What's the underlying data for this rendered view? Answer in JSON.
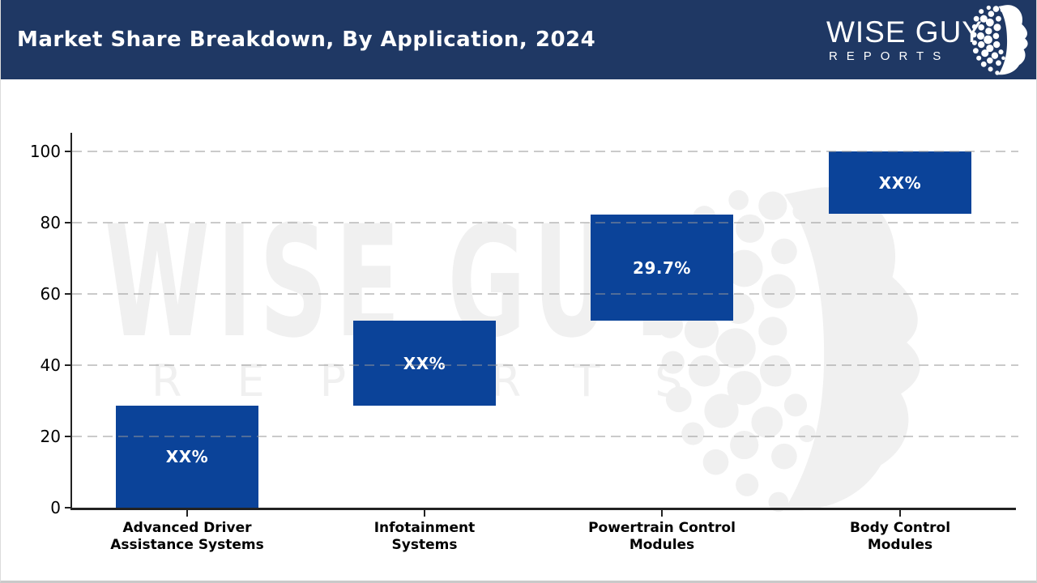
{
  "header": {
    "title": "Market Share Breakdown, By Application, 2024",
    "logo": {
      "brand": "WISE GUY",
      "sub": "REPORTS"
    }
  },
  "watermark": {
    "brand": "WISE GUY",
    "sub": "REPORTS"
  },
  "chart_data": {
    "type": "bar",
    "subtype": "waterfall",
    "title": "Market Share Breakdown, By Application, 2024",
    "categories": [
      "Advanced Driver\nAssistance Systems",
      "Infotainment\nSystems",
      "Powertrain Control\nModules",
      "Body Control\nModules"
    ],
    "segments": [
      {
        "category": "Advanced Driver Assistance Systems",
        "start": 0,
        "end": 28.6,
        "label": "XX%"
      },
      {
        "category": "Infotainment Systems",
        "start": 28.6,
        "end": 52.5,
        "label": "XX%"
      },
      {
        "category": "Powertrain Control Modules",
        "start": 52.5,
        "end": 82.2,
        "label": "29.7%"
      },
      {
        "category": "Body Control Modules",
        "start": 82.4,
        "end": 100,
        "label": "XX%"
      }
    ],
    "xlabel": "",
    "ylabel": "",
    "ylim": [
      0,
      105
    ],
    "yticks": [
      0,
      20,
      40,
      60,
      80,
      100
    ],
    "grid": "horizontal-dashed",
    "legend": "none",
    "bar_color": "#0b4399",
    "bar_label_color": "#ffffff"
  },
  "colors": {
    "header_bg": "#1f3864",
    "bar": "#0b4399",
    "grid": "#c9c9c9",
    "axis": "#222222",
    "watermark": "#f0f0f0"
  }
}
